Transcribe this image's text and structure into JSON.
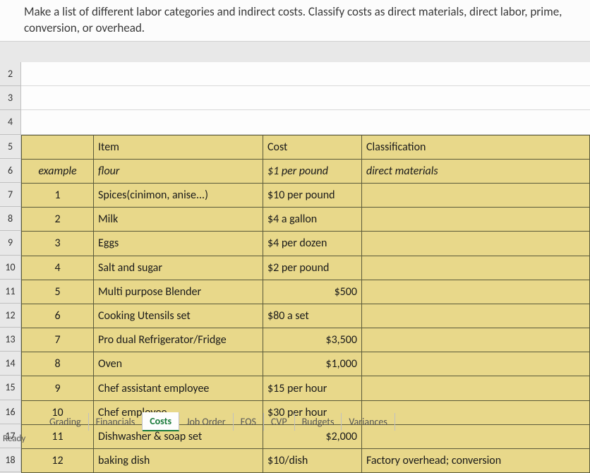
{
  "instruction": "Make a list of different labor categories and indirect costs. Classify costs as direct materials, direct labor, prime, conversion, or overhead.",
  "row_headers": [
    "2",
    "3",
    "4",
    "5",
    "6",
    "7",
    "8",
    "9",
    "10",
    "11",
    "12",
    "13",
    "14",
    "15",
    "16",
    "17",
    "18"
  ],
  "table": {
    "headers": {
      "col_b": "Item",
      "col_c": "Cost",
      "col_d": "Classification"
    },
    "rows": [
      {
        "a": "example",
        "b": "flour",
        "c": "$1 per pound",
        "d": "direct materials",
        "italic": true,
        "c_align": "left"
      },
      {
        "a": "1",
        "b": "Spices(cinimon, anise...)",
        "c": "$10 per pound",
        "d": "",
        "c_align": "left"
      },
      {
        "a": "2",
        "b": "Milk",
        "c": "$4 a gallon",
        "d": "",
        "c_align": "left"
      },
      {
        "a": "3",
        "b": "Eggs",
        "c": "$4 per dozen",
        "d": "",
        "c_align": "left"
      },
      {
        "a": "4",
        "b": "Salt and sugar",
        "c": "$2 per pound",
        "d": "",
        "c_align": "left"
      },
      {
        "a": "5",
        "b": "Multi purpose Blender",
        "c": "$500",
        "d": "",
        "c_align": "right"
      },
      {
        "a": "6",
        "b": "Cooking Utensils set",
        "c": "$80 a set",
        "d": "",
        "c_align": "left"
      },
      {
        "a": "7",
        "b": "Pro dual Refrigerator/Fridge",
        "c": "$3,500",
        "d": "",
        "c_align": "right"
      },
      {
        "a": "8",
        "b": "Oven",
        "c": "$1,000",
        "d": "",
        "c_align": "right"
      },
      {
        "a": "9",
        "b": "Chef assistant employee",
        "c": "$15 per hour",
        "d": "",
        "c_align": "left"
      },
      {
        "a": "10",
        "b": "Chef employee",
        "c": "$30 per hour",
        "d": "",
        "c_align": "left"
      },
      {
        "a": "11",
        "b": "Dishwasher & soap set",
        "c": "$2,000",
        "d": "",
        "c_align": "right"
      },
      {
        "a": "12",
        "b": "baking dish",
        "c": "$10/dish",
        "d": "Factory overhead; conversion",
        "c_align": "left"
      }
    ],
    "colors": {
      "cell_bg": "#e8d88a",
      "cell_border": "#5a5a3a",
      "row_header_bg": "#e8e8e8"
    }
  },
  "tabs": {
    "items": [
      "Grading",
      "Financials",
      "Costs",
      "Job Order",
      "EOS",
      "CVP",
      "Budgets",
      "Variances"
    ],
    "active_index": 2,
    "active_color": "#1a7a3a"
  },
  "status": "Ready"
}
